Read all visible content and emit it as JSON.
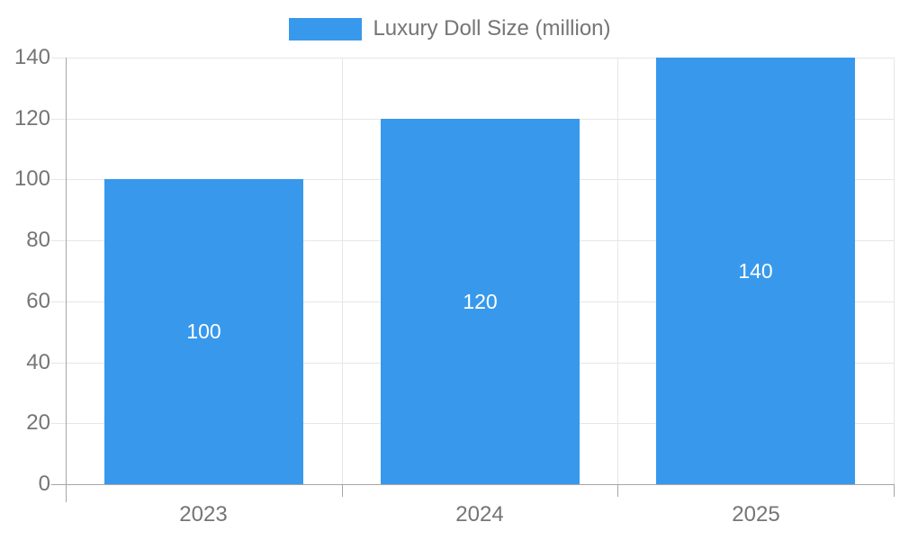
{
  "chart_data": {
    "type": "bar",
    "title": "",
    "legend": "Luxury Doll Size (million)",
    "legend_position": "top",
    "categories": [
      "2023",
      "2024",
      "2025"
    ],
    "series": [
      {
        "name": "Luxury Doll Size (million)",
        "values": [
          100,
          120,
          140
        ]
      }
    ],
    "data_labels": [
      "100",
      "120",
      "140"
    ],
    "xlabel": "",
    "ylabel": "",
    "ylim": [
      0,
      140
    ],
    "yticks": [
      0,
      20,
      40,
      60,
      80,
      100,
      120,
      140
    ],
    "grid": true,
    "colors": {
      "bar": "#3899ec",
      "grid": "#e6e6e6",
      "axis": "#a6a6a6",
      "tick_text": "#757575",
      "data_label": "#ffffff",
      "background": "#ffffff"
    }
  }
}
